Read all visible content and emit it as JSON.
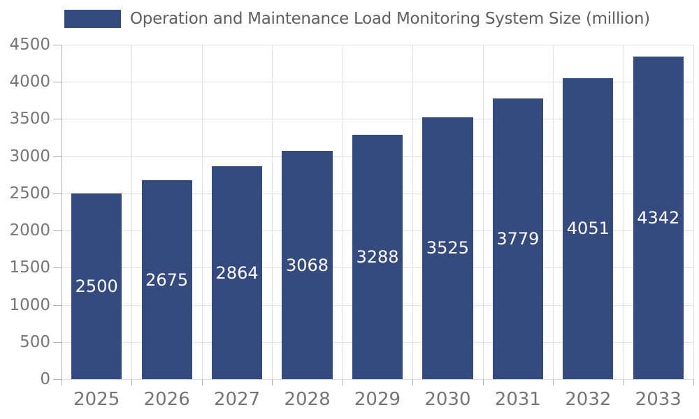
{
  "chart_data": {
    "type": "bar",
    "title": "Operation and Maintenance Load Monitoring System Size (million)",
    "categories": [
      "2025",
      "2026",
      "2027",
      "2028",
      "2029",
      "2030",
      "2031",
      "2032",
      "2033"
    ],
    "values": [
      2500,
      2675,
      2864,
      3068,
      3288,
      3525,
      3779,
      4051,
      4342
    ],
    "xlabel": "",
    "ylabel": "",
    "ylim": [
      0,
      4500
    ],
    "ytick_step": 500,
    "grid": true,
    "legend_position": "top-left",
    "bar_labels_inside": true
  },
  "colors": {
    "bar": "#354a7e",
    "bar_label": "#ffffff",
    "grid": "#e0e0e0",
    "axis": "#b0b0b8",
    "axis_text": "#757575",
    "legend_text": "#5f5f5f",
    "background": "#ffffff"
  }
}
